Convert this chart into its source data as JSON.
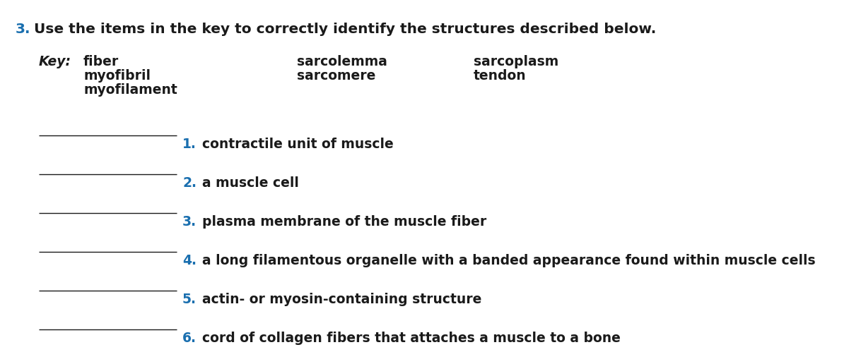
{
  "title_number": "3.",
  "title_text": "  Use the items in the key to correctly identify the structures described below.",
  "title_number_color": "#1a6faf",
  "title_text_color": "#1a1a1a",
  "key_label": "Key:",
  "key_col1": [
    "fiber",
    "myofibril",
    "myofilament"
  ],
  "key_col2": [
    "sarcolemma",
    "sarcomere"
  ],
  "key_col3": [
    "sarcoplasm",
    "tendon"
  ],
  "questions": [
    {
      "num": "1.",
      "text": "  contractile unit of muscle"
    },
    {
      "num": "2.",
      "text": "  a muscle cell"
    },
    {
      "num": "3.",
      "text": "  plasma membrane of the muscle fiber"
    },
    {
      "num": "4.",
      "text": "  a long filamentous organelle with a banded appearance found within muscle cells"
    },
    {
      "num": "5.",
      "text": "  actin- or myosin-containing structure"
    },
    {
      "num": "6.",
      "text": "  cord of collagen fibers that attaches a muscle to a bone"
    }
  ],
  "number_color": "#1a6faf",
  "text_color": "#1a1a1a",
  "line_color": "#1a1a1a",
  "bg_color": "#ffffff",
  "font_size_title": 14.5,
  "font_size_key": 13.5,
  "font_size_q": 13.5
}
